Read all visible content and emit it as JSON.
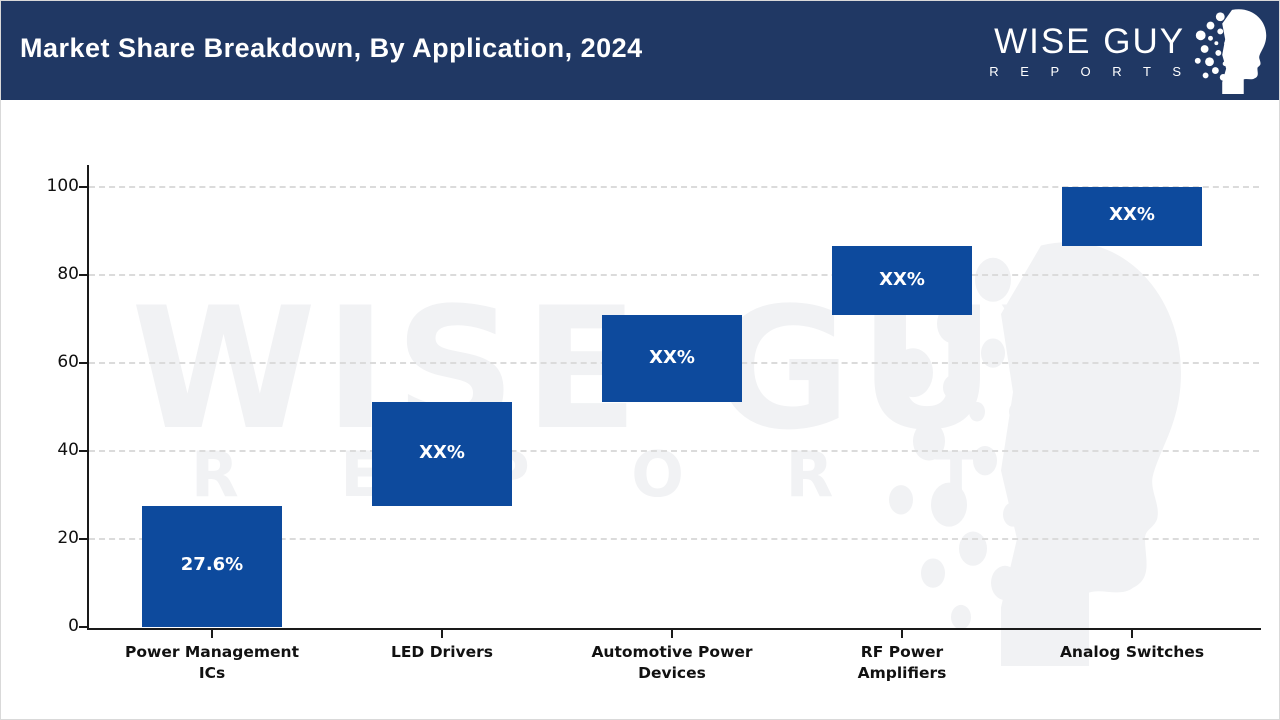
{
  "header": {
    "title": "Market Share Breakdown, By Application, 2024",
    "logo": {
      "line1": "WISE GUY",
      "line2": "R E P O R T S"
    }
  },
  "watermark": {
    "line1": "WISE GUY",
    "line2": "R E P O R T S"
  },
  "colors": {
    "header_bg": "#203864",
    "bar": "#0d4a9d",
    "bar_label": "#ffffff",
    "grid": "#dbdbdb",
    "axis": "#1a1a1a",
    "watermark": "#f1f2f4"
  },
  "chart_data": {
    "type": "bar",
    "subtype": "waterfall",
    "title": "Market Share Breakdown, By Application, 2024",
    "categories": [
      "Power Management ICs",
      "LED Drivers",
      "Automotive Power Devices",
      "RF Power Amplifiers",
      "Analog Switches"
    ],
    "bars": [
      {
        "category": "Power Management ICs",
        "label_lines": [
          "Power Management",
          "ICs"
        ],
        "start": 0,
        "end": 27.6,
        "value": 27.6,
        "label": "27.6%"
      },
      {
        "category": "LED Drivers",
        "label_lines": [
          "LED Drivers"
        ],
        "start": 27.6,
        "end": 51.1,
        "value": 23.5,
        "label": "XX%"
      },
      {
        "category": "Automotive Power Devices",
        "label_lines": [
          "Automotive Power",
          "Devices"
        ],
        "start": 51.1,
        "end": 70.9,
        "value": 19.8,
        "label": "XX%"
      },
      {
        "category": "RF Power Amplifiers",
        "label_lines": [
          "RF Power",
          "Amplifiers"
        ],
        "start": 70.9,
        "end": 86.6,
        "value": 15.7,
        "label": "XX%"
      },
      {
        "category": "Analog Switches",
        "label_lines": [
          "Analog Switches"
        ],
        "start": 86.6,
        "end": 100,
        "value": 13.4,
        "label": "XX%"
      }
    ],
    "xlabel": "",
    "ylabel": "",
    "ylim": [
      0,
      100
    ],
    "yticks": [
      0,
      20,
      40,
      60,
      80,
      100
    ],
    "grid": "horizontal-dashed",
    "legend": "none"
  }
}
